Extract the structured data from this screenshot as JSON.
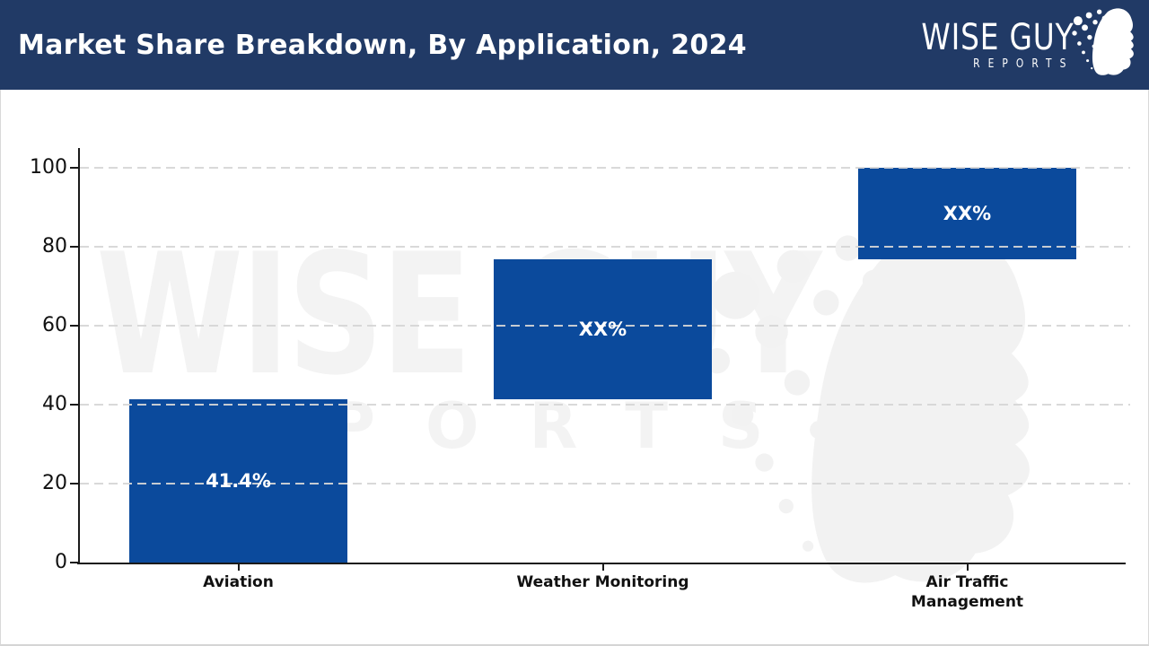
{
  "header": {
    "title": "Market Share Breakdown, By Application, 2024",
    "logo": {
      "name": "WISE GUY",
      "tagline": "REPORTS"
    },
    "bg_color": "#213a66"
  },
  "watermark": {
    "name": "WISE GUY",
    "tagline": "REPORTS"
  },
  "chart_data": {
    "type": "bar",
    "subtype": "floating-segment bars (waterfall-style share breakdown)",
    "title": "Market Share Breakdown, By Application, 2024",
    "categories": [
      "Aviation",
      "Weather Monitoring",
      "Air Traffic Management"
    ],
    "segments": [
      {
        "category": "Aviation",
        "from": 0,
        "to": 41.4,
        "label": "41.4%"
      },
      {
        "category": "Weather Monitoring",
        "from": 41.4,
        "to": 76.9,
        "label": "XX%"
      },
      {
        "category": "Air Traffic Management",
        "from": 76.9,
        "to": 100,
        "label": "XX%"
      }
    ],
    "ylim": [
      0,
      100
    ],
    "yticks": [
      0,
      20,
      40,
      60,
      80,
      100
    ],
    "xlabel": "",
    "ylabel": "",
    "legend": "none",
    "grid": {
      "horizontal": true,
      "style": "dashed",
      "color": "#d9d9d9"
    },
    "bar_color": "#0b4a9c",
    "bar_label_color": "#ffffff",
    "axis_color": "#1a1a1a"
  }
}
